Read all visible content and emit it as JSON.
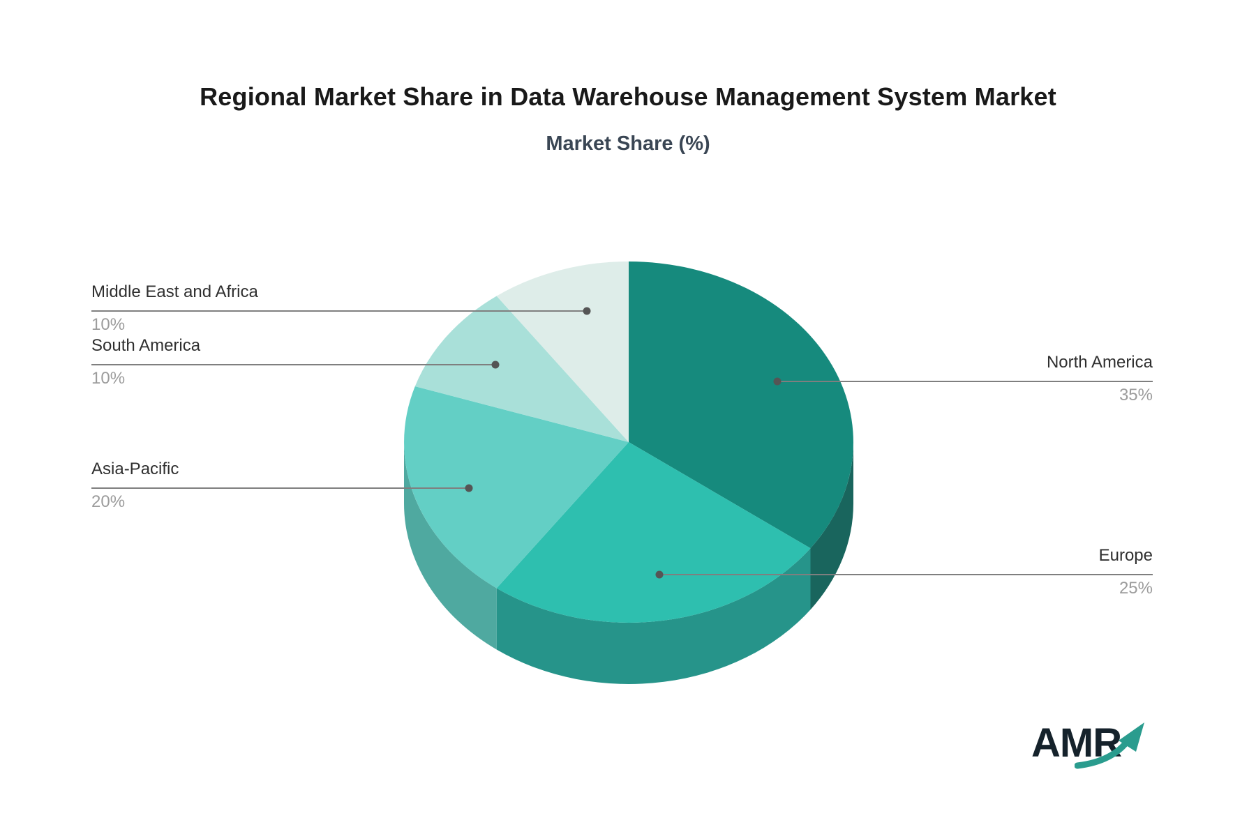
{
  "chart_data": {
    "type": "pie",
    "style": "3d",
    "title": "Regional Market Share in Data Warehouse Management System Market",
    "subtitle": "Market Share (%)",
    "legend_position": "none",
    "data_labels": "callout lines with region name above line and percent below",
    "unit": "%",
    "series": [
      {
        "name": "North America",
        "value": 35,
        "display": "35%",
        "color": "#168a7d",
        "side_color": "#19655d"
      },
      {
        "name": "Europe",
        "value": 25,
        "display": "25%",
        "color": "#2ebfaf",
        "side_color": "#26948a"
      },
      {
        "name": "Asia-Pacific",
        "value": 20,
        "display": "20%",
        "color": "#63cfc5",
        "side_color": "#4fa9a0"
      },
      {
        "name": "South America",
        "value": 10,
        "display": "10%",
        "color": "#a9e0d9"
      },
      {
        "name": "Middle East and Africa",
        "value": 10,
        "display": "10%",
        "color": "#deede9"
      }
    ]
  },
  "logo": {
    "text": "AMR",
    "text_color": "#15222b",
    "arrow_color": "#2a9c8e"
  },
  "colors": {
    "background": "#ffffff",
    "title": "#191919",
    "subtitle": "#3a4654",
    "label_text": "#2f2f2f",
    "pct_text": "#9c9c9c",
    "connector_line": "#7f7f7f",
    "connector_dot": "#555555"
  }
}
